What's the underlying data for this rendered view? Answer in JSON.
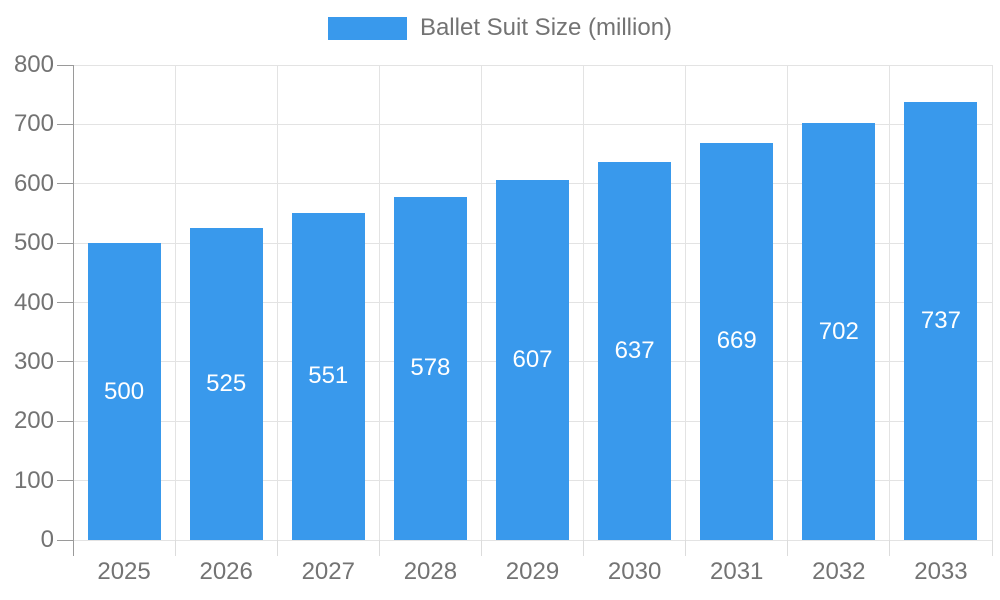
{
  "chart_data": {
    "type": "bar",
    "title": "Ballet Suit Size (million)",
    "categories": [
      "2025",
      "2026",
      "2027",
      "2028",
      "2029",
      "2030",
      "2031",
      "2032",
      "2033"
    ],
    "values": [
      500,
      525,
      551,
      578,
      607,
      637,
      669,
      702,
      737
    ],
    "xlabel": "",
    "ylabel": "",
    "ylim": [
      0,
      800
    ],
    "ytick_step": 100,
    "grid": "on",
    "legend_position": "top-center",
    "legend_entries": [
      "Ballet Suit Size (million)"
    ],
    "value_labels": "inside-center-white"
  },
  "colors": {
    "bar": "#3999ec",
    "value_label": "#ffffff",
    "axis_text": "#737373",
    "grid_line": "#e3e3e3",
    "axis_line": "#9a9a9a",
    "x_tick": "#dcdcdc",
    "background": "#ffffff"
  }
}
